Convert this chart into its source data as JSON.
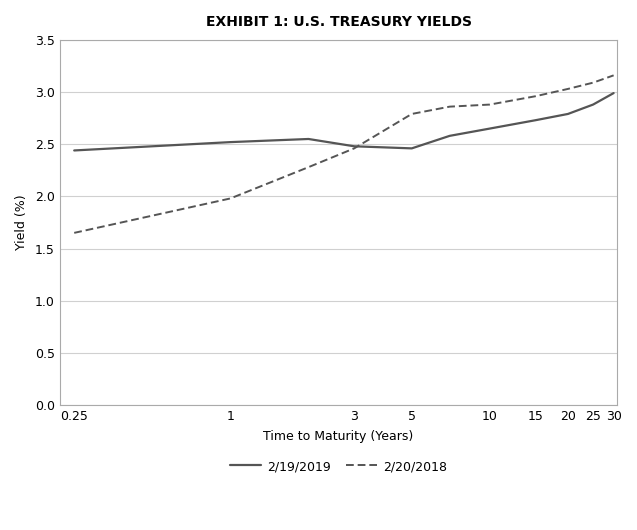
{
  "title": "EXHIBIT 1: U.S. TREASURY YIELDS",
  "xlabel": "Time to Maturity (Years)",
  "ylabel": "Yield (%)",
  "xtick_positions": [
    0.25,
    1,
    3,
    5,
    10,
    15,
    20,
    25,
    30
  ],
  "xtick_labels": [
    "0.25",
    "1",
    "3",
    "5",
    "10",
    "15",
    "20",
    "25",
    "30"
  ],
  "yticks": [
    0.0,
    0.5,
    1.0,
    1.5,
    2.0,
    2.5,
    3.0,
    3.5
  ],
  "ylim": [
    0.0,
    3.5
  ],
  "series_2019": {
    "x": [
      0.25,
      1,
      2,
      3,
      5,
      7,
      10,
      15,
      20,
      25,
      30
    ],
    "y": [
      2.44,
      2.52,
      2.55,
      2.48,
      2.46,
      2.58,
      2.65,
      2.73,
      2.79,
      2.88,
      2.99
    ],
    "label": "2/19/2019",
    "color": "#555555",
    "linestyle": "solid",
    "linewidth": 1.6
  },
  "series_2018": {
    "x": [
      0.25,
      1,
      2,
      3,
      5,
      7,
      10,
      15,
      20,
      25,
      30
    ],
    "y": [
      1.65,
      1.98,
      2.28,
      2.46,
      2.79,
      2.86,
      2.88,
      2.96,
      3.03,
      3.09,
      3.16
    ],
    "label": "2/20/2018",
    "color": "#555555",
    "linestyle": "dashed",
    "linewidth": 1.4
  },
  "background_color": "#ffffff",
  "grid_color": "#d0d0d0",
  "title_fontsize": 10,
  "axis_label_fontsize": 9,
  "tick_fontsize": 9,
  "legend_fontsize": 9
}
